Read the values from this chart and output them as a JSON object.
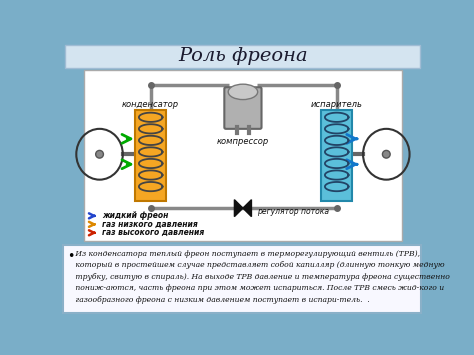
{
  "title": "Роль фреона",
  "title_fontsize": 14,
  "bg_color": "#7aaec8",
  "title_box_color": "#d4e4f0",
  "diagram_bg": "#f0f0f0",
  "condenser_color": "#f5a623",
  "evaporator_color": "#5bbfda",
  "pipe_color": "#888888",
  "pipe_lw": 2.5,
  "labels": {
    "condenser": "конденсатор",
    "compressor": "компрессор",
    "evaporator": "испаритель",
    "regulator": "регулятор потока"
  },
  "legend": [
    {
      "color": "#2244cc",
      "label": "жидкий фреон"
    },
    {
      "color": "#dd8800",
      "label": "газ низкого давления"
    },
    {
      "color": "#cc2200",
      "label": "газ высокого давления"
    }
  ],
  "text_box_bg": "#f8f8ff",
  "text_box_border": "#8ab0c8",
  "body_text_lines": [
    " Из конденсатора теплый фреон поступает в терморегулирующий вентиль (ТРВ),",
    " который в простейшем случае представляет собой капилляр (длинную тонкую медную",
    " трубку, свитую в спираль). На выходе ТРВ давление и температура фреона существенно",
    " пониж-аются, часть фреона при этом может испариться. После ТРВ смесь жид-кого и",
    " газообразного фреона с низким давлением поступает в испари-тель.  ."
  ]
}
